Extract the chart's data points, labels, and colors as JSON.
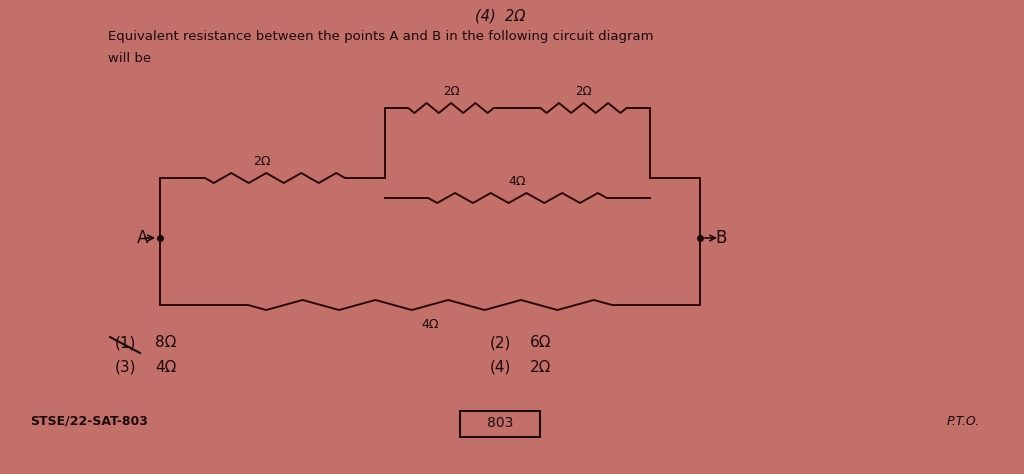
{
  "bg_color": "#c4706a",
  "title_top": "(4)  2Ω",
  "q_line1": "Equivalent resistance between the points A and B in the following circuit diagram",
  "q_line2": "will be",
  "circuit": {
    "A_label": "A",
    "B_label": "B",
    "r_top_outer": "2Ω",
    "r_top_inner_left": "2Ω",
    "r_top_inner_right": "2Ω",
    "r_middle": "4Ω",
    "r_bottom": "4Ω"
  },
  "options": [
    {
      "num": "(1)",
      "val": "8Ω",
      "strike": true
    },
    {
      "num": "(2)",
      "val": "6Ω",
      "strike": false
    },
    {
      "num": "(3)",
      "val": "4Ω",
      "strike": false
    },
    {
      "num": "(4)",
      "val": "2Ω",
      "strike": false
    }
  ],
  "footer_left": "STSE/22-SAT-803",
  "footer_center": "803",
  "footer_right": "P.T.O.",
  "text_color": "#1a0a0a",
  "wire_color": "#2a0808",
  "lw": 1.4
}
